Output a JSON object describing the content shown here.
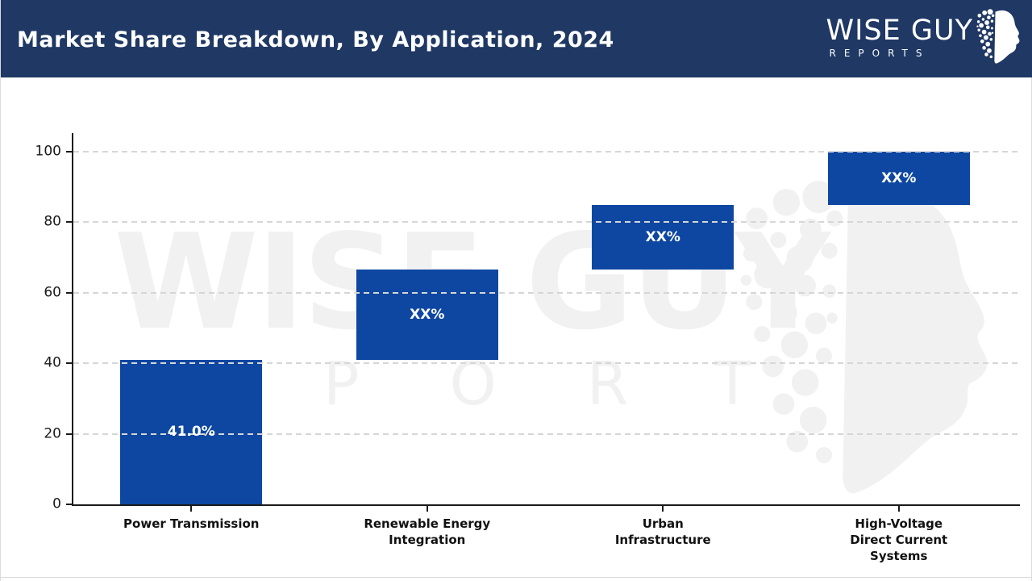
{
  "header": {
    "title": "Market Share Breakdown, By Application, 2024",
    "logo": {
      "name_line": "WISE GUY",
      "reports_line": "REPORTS",
      "face_icon": "dotted-head-profile"
    },
    "bg_color": "#1f3864"
  },
  "watermark": {
    "name_line": "WISE GUY",
    "ports_line": "PORTS",
    "face_icon": "dotted-head-profile",
    "color": "#f1f1f1"
  },
  "chart_data": {
    "type": "bar",
    "subtype": "waterfall-style floating bars",
    "title": "Market Share Breakdown, By Application, 2024",
    "categories": [
      "Power Transmission",
      "Renewable Energy\nIntegration",
      "Urban\nInfrastructure",
      "High-Voltage\nDirect Current\nSystems"
    ],
    "segments": [
      {
        "category": "Power Transmission",
        "start": 0,
        "end": 41,
        "label": "41.0%"
      },
      {
        "category": "Renewable Energy Integration",
        "start": 41,
        "end": 66.5,
        "label": "XX%"
      },
      {
        "category": "Urban Infrastructure",
        "start": 66.5,
        "end": 85,
        "label": "XX%"
      },
      {
        "category": "High-Voltage Direct Current Systems",
        "start": 85,
        "end": 100,
        "label": "XX%"
      }
    ],
    "xlabel": "",
    "ylabel": "",
    "ylim": [
      0,
      100
    ],
    "yticks": [
      0,
      20,
      40,
      60,
      80,
      100
    ],
    "grid": {
      "horizontal": true,
      "style": "dashed",
      "above_bars": true
    },
    "legend": "none",
    "colors": {
      "bar": "#0d47a1",
      "value_label": "#ffffff",
      "header_bg": "#1f3864",
      "grid_line": "#d6d6d6",
      "axis": "#1a1a1a",
      "watermark": "#f1f1f1"
    }
  }
}
